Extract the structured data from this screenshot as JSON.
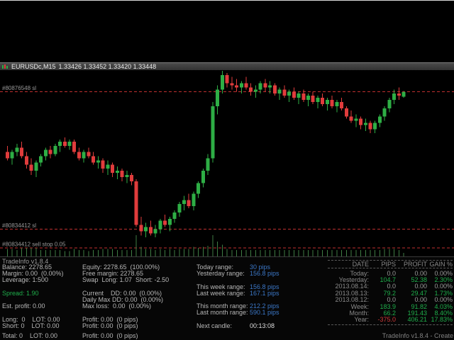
{
  "window": {
    "symbol_tf": "EURUSDc,M15",
    "ohlc": "1.33426 1.33452 1.33420 1.33448"
  },
  "chart": {
    "order_lines": [
      {
        "label": "#80876548 sl",
        "price": 1.3345
      },
      {
        "label": "#80834412 sl",
        "price": 1.3279
      },
      {
        "label": "#80834412 sell stop 0.05",
        "price": 1.327
      }
    ]
  },
  "chart_data": {
    "type": "candlestick",
    "title": "EURUSDc,M15",
    "symbol": "EURUSDc",
    "timeframe": "M15",
    "current_ohlc": {
      "open": "1.33426",
      "high": "1.33452",
      "low": "1.33420",
      "close": "1.33448"
    },
    "ylim": [
      1.32659,
      1.33553
    ],
    "colors": {
      "up": "#2eae45",
      "down": "#e03c3c",
      "volume": "#3f7d44",
      "order_line": "#c03030",
      "label": "#9a9a9a"
    },
    "candles": [
      [
        1.3316,
        1.3319,
        1.3312,
        1.3313
      ],
      [
        1.3313,
        1.3317,
        1.331,
        1.3316
      ],
      [
        1.3316,
        1.332,
        1.3314,
        1.3318
      ],
      [
        1.3318,
        1.3321,
        1.3313,
        1.3314
      ],
      [
        1.3314,
        1.3316,
        1.3308,
        1.331
      ],
      [
        1.331,
        1.3313,
        1.3305,
        1.3307
      ],
      [
        1.3307,
        1.3312,
        1.3304,
        1.3311
      ],
      [
        1.3311,
        1.3315,
        1.3309,
        1.3314
      ],
      [
        1.3314,
        1.3318,
        1.3312,
        1.3317
      ],
      [
        1.3317,
        1.3319,
        1.3313,
        1.3315
      ],
      [
        1.3315,
        1.332,
        1.3314,
        1.3319
      ],
      [
        1.3319,
        1.3322,
        1.3316,
        1.3321
      ],
      [
        1.3321,
        1.3323,
        1.3318,
        1.3319
      ],
      [
        1.3319,
        1.3322,
        1.3317,
        1.3321
      ],
      [
        1.3321,
        1.3322,
        1.3315,
        1.3316
      ],
      [
        1.3316,
        1.3318,
        1.3312,
        1.3313
      ],
      [
        1.3313,
        1.3317,
        1.3311,
        1.3316
      ],
      [
        1.3316,
        1.3318,
        1.3313,
        1.3314
      ],
      [
        1.3314,
        1.3316,
        1.331,
        1.3311
      ],
      [
        1.3311,
        1.3314,
        1.3308,
        1.3312
      ],
      [
        1.3312,
        1.3313,
        1.3306,
        1.3308
      ],
      [
        1.3308,
        1.3312,
        1.3305,
        1.331
      ],
      [
        1.331,
        1.3311,
        1.3304,
        1.3306
      ],
      [
        1.3306,
        1.3309,
        1.3303,
        1.3307
      ],
      [
        1.3307,
        1.3308,
        1.3302,
        1.3304
      ],
      [
        1.3304,
        1.3307,
        1.3301,
        1.3305
      ],
      [
        1.3305,
        1.3306,
        1.33,
        1.3302
      ],
      [
        1.3302,
        1.3303,
        1.328,
        1.3281
      ],
      [
        1.3281,
        1.3285,
        1.3276,
        1.3278
      ],
      [
        1.3278,
        1.3282,
        1.3275,
        1.328
      ],
      [
        1.328,
        1.3283,
        1.3276,
        1.3277
      ],
      [
        1.3277,
        1.3281,
        1.3275,
        1.3279
      ],
      [
        1.3279,
        1.3284,
        1.3277,
        1.3283
      ],
      [
        1.3283,
        1.3286,
        1.328,
        1.3281
      ],
      [
        1.3281,
        1.3285,
        1.3278,
        1.3284
      ],
      [
        1.3284,
        1.3288,
        1.3282,
        1.3287
      ],
      [
        1.3287,
        1.3292,
        1.3285,
        1.3291
      ],
      [
        1.3291,
        1.3295,
        1.3288,
        1.3293
      ],
      [
        1.3293,
        1.3296,
        1.3289,
        1.329
      ],
      [
        1.329,
        1.3297,
        1.3288,
        1.3296
      ],
      [
        1.3296,
        1.3302,
        1.3294,
        1.3301
      ],
      [
        1.3301,
        1.3308,
        1.3299,
        1.3307
      ],
      [
        1.3307,
        1.3315,
        1.3305,
        1.3313
      ],
      [
        1.3313,
        1.334,
        1.3311,
        1.3338
      ],
      [
        1.3338,
        1.3348,
        1.3334,
        1.3346
      ],
      [
        1.3346,
        1.3355,
        1.3344,
        1.3353
      ],
      [
        1.3353,
        1.3354,
        1.3347,
        1.3349
      ],
      [
        1.3349,
        1.3352,
        1.3346,
        1.3348
      ],
      [
        1.3348,
        1.3351,
        1.3345,
        1.3347
      ],
      [
        1.3347,
        1.335,
        1.3344,
        1.3349
      ],
      [
        1.3349,
        1.3352,
        1.3346,
        1.3347
      ],
      [
        1.3347,
        1.3349,
        1.3343,
        1.3345
      ],
      [
        1.3345,
        1.3348,
        1.3342,
        1.3346
      ],
      [
        1.3346,
        1.335,
        1.3344,
        1.3349
      ],
      [
        1.3349,
        1.3351,
        1.3345,
        1.3347
      ],
      [
        1.3347,
        1.335,
        1.3344,
        1.3348
      ],
      [
        1.3348,
        1.3349,
        1.3343,
        1.3344
      ],
      [
        1.3344,
        1.3347,
        1.3341,
        1.3346
      ],
      [
        1.3346,
        1.3348,
        1.3342,
        1.3343
      ],
      [
        1.3343,
        1.3346,
        1.334,
        1.3345
      ],
      [
        1.3345,
        1.3347,
        1.3341,
        1.3342
      ],
      [
        1.3342,
        1.3345,
        1.3339,
        1.3344
      ],
      [
        1.3344,
        1.3346,
        1.334,
        1.3341
      ],
      [
        1.3341,
        1.3344,
        1.3338,
        1.3343
      ],
      [
        1.3343,
        1.3345,
        1.3339,
        1.334
      ],
      [
        1.334,
        1.3343,
        1.3337,
        1.3342
      ],
      [
        1.3342,
        1.3344,
        1.3338,
        1.3339
      ],
      [
        1.3339,
        1.3342,
        1.3336,
        1.3341
      ],
      [
        1.3341,
        1.3343,
        1.3337,
        1.3338
      ],
      [
        1.3338,
        1.3341,
        1.3335,
        1.334
      ],
      [
        1.334,
        1.3342,
        1.3336,
        1.3337
      ],
      [
        1.3337,
        1.3338,
        1.3332,
        1.3333
      ],
      [
        1.3333,
        1.3336,
        1.333,
        1.3331
      ],
      [
        1.3331,
        1.3334,
        1.3328,
        1.3332
      ],
      [
        1.3332,
        1.3333,
        1.3327,
        1.3329
      ],
      [
        1.3329,
        1.3332,
        1.3326,
        1.333
      ],
      [
        1.333,
        1.3331,
        1.3325,
        1.3327
      ],
      [
        1.3327,
        1.3331,
        1.3325,
        1.333
      ],
      [
        1.333,
        1.3334,
        1.3328,
        1.3333
      ],
      [
        1.3333,
        1.3338,
        1.3331,
        1.3337
      ],
      [
        1.3337,
        1.3342,
        1.3335,
        1.3341
      ],
      [
        1.3341,
        1.3346,
        1.3339,
        1.3344
      ],
      [
        1.3344,
        1.3347,
        1.3341,
        1.3343
      ],
      [
        1.33426,
        1.33452,
        1.3342,
        1.33448
      ]
    ]
  },
  "panel": {
    "title": "TradeInfo v1.8.4",
    "credit": "TradeInfo v1.8.4 - Create",
    "colors": {
      "text": "#b8b8b8",
      "gray": "#9a9a9a",
      "muted": "#8a8a8a",
      "green": "#1fae4b",
      "blue": "#3c78c8",
      "red": "#d23a3a",
      "white": "#dcdcdc"
    },
    "col1": [
      {
        "row": 0,
        "text": "Balance: 2278.65"
      },
      {
        "row": 1,
        "text": "Margin: 0.00  (0.00%)"
      },
      {
        "row": 2,
        "text": "Leverage: 1:500"
      },
      {
        "row": 4,
        "text": "Spread: 1.90",
        "color": "green"
      },
      {
        "row": 6,
        "text": "Est. profit: 0.00"
      },
      {
        "row": 8,
        "text": "Long:  0    LOT: 0.00"
      },
      {
        "row": 9,
        "text": "Short: 0    LOT: 0.00"
      },
      {
        "row": 10.5,
        "text": "Total: 0    LOT: 0.00"
      }
    ],
    "col2": [
      {
        "row": 0,
        "text": "Equity: 2278.65  (100.00%)"
      },
      {
        "row": 1,
        "text": "Free margin: 2278.65"
      },
      {
        "row": 2,
        "text": "Swap  Long: 1.07  Short: -2.50"
      },
      {
        "row": 4,
        "text": "Current    DD: 0.00  (0.00%)"
      },
      {
        "row": 5,
        "text": "Daily Max DD: 0.00  (0.00%)"
      },
      {
        "row": 6,
        "text": "Max loss:  0.00  (0.00%)"
      },
      {
        "row": 8,
        "text": "Profit: 0.00  (0 pips)"
      },
      {
        "row": 9,
        "text": "Profit: 0.00  (0 pips)"
      },
      {
        "row": 10.5,
        "text": "Profit: 0.00  (0 pips)"
      }
    ],
    "ranges": [
      {
        "row": 0,
        "label": "Today range:",
        "value": "30 pips",
        "value_color": "blue"
      },
      {
        "row": 1,
        "label": "Yesterday range:",
        "value": "156.8 pips",
        "value_color": "blue"
      },
      {
        "row": 3,
        "label": "This week range:",
        "value": "156.8 pips",
        "value_color": "blue"
      },
      {
        "row": 4,
        "label": "Last week range:",
        "value": "167.1 pips",
        "value_color": "blue"
      },
      {
        "row": 6,
        "label": "This month range:",
        "value": "212.2 pips",
        "value_color": "blue"
      },
      {
        "row": 7,
        "label": "Last month range:",
        "value": "590.1 pips",
        "value_color": "blue"
      },
      {
        "row": 9,
        "label": "Next candle:",
        "value": "00:13:08",
        "value_color": "white"
      }
    ],
    "stats_table": {
      "headers": [
        "DATE",
        "PIPS",
        "PROFIT",
        "GAIN %"
      ],
      "rows": [
        {
          "date": "Today:",
          "pips": "0.0",
          "profit": "0.00",
          "gain": "0.00%",
          "pips_color": "gray",
          "profit_color": "gray",
          "gain_color": "gray"
        },
        {
          "date": "Yesterday:",
          "pips": "104.7",
          "profit": "52.38",
          "gain": "2.30%",
          "pips_color": "green",
          "profit_color": "green",
          "gain_color": "green"
        },
        {
          "date": "2013.08.14:",
          "pips": "0.0",
          "profit": "0.00",
          "gain": "0.00%",
          "pips_color": "gray",
          "profit_color": "gray",
          "gain_color": "gray"
        },
        {
          "date": "2013.08.13:",
          "pips": "79.2",
          "profit": "29.47",
          "gain": "1.73%",
          "pips_color": "green",
          "profit_color": "green",
          "gain_color": "green"
        },
        {
          "date": "2013.08.12:",
          "pips": "0.0",
          "profit": "0.00",
          "gain": "0.00%",
          "pips_color": "gray",
          "profit_color": "gray",
          "gain_color": "gray"
        },
        {
          "date": "Week:",
          "pips": "183.9",
          "profit": "91.82",
          "gain": "4.03%",
          "pips_color": "green",
          "profit_color": "green",
          "gain_color": "green"
        },
        {
          "date": "Month:",
          "pips": "66.2",
          "profit": "191.43",
          "gain": "8.40%",
          "pips_color": "green",
          "profit_color": "green",
          "gain_color": "green"
        },
        {
          "date": "Year:",
          "pips": "-375.0",
          "profit": "406.21",
          "gain": "17.83%",
          "pips_color": "red",
          "profit_color": "green",
          "gain_color": "green"
        }
      ]
    }
  }
}
